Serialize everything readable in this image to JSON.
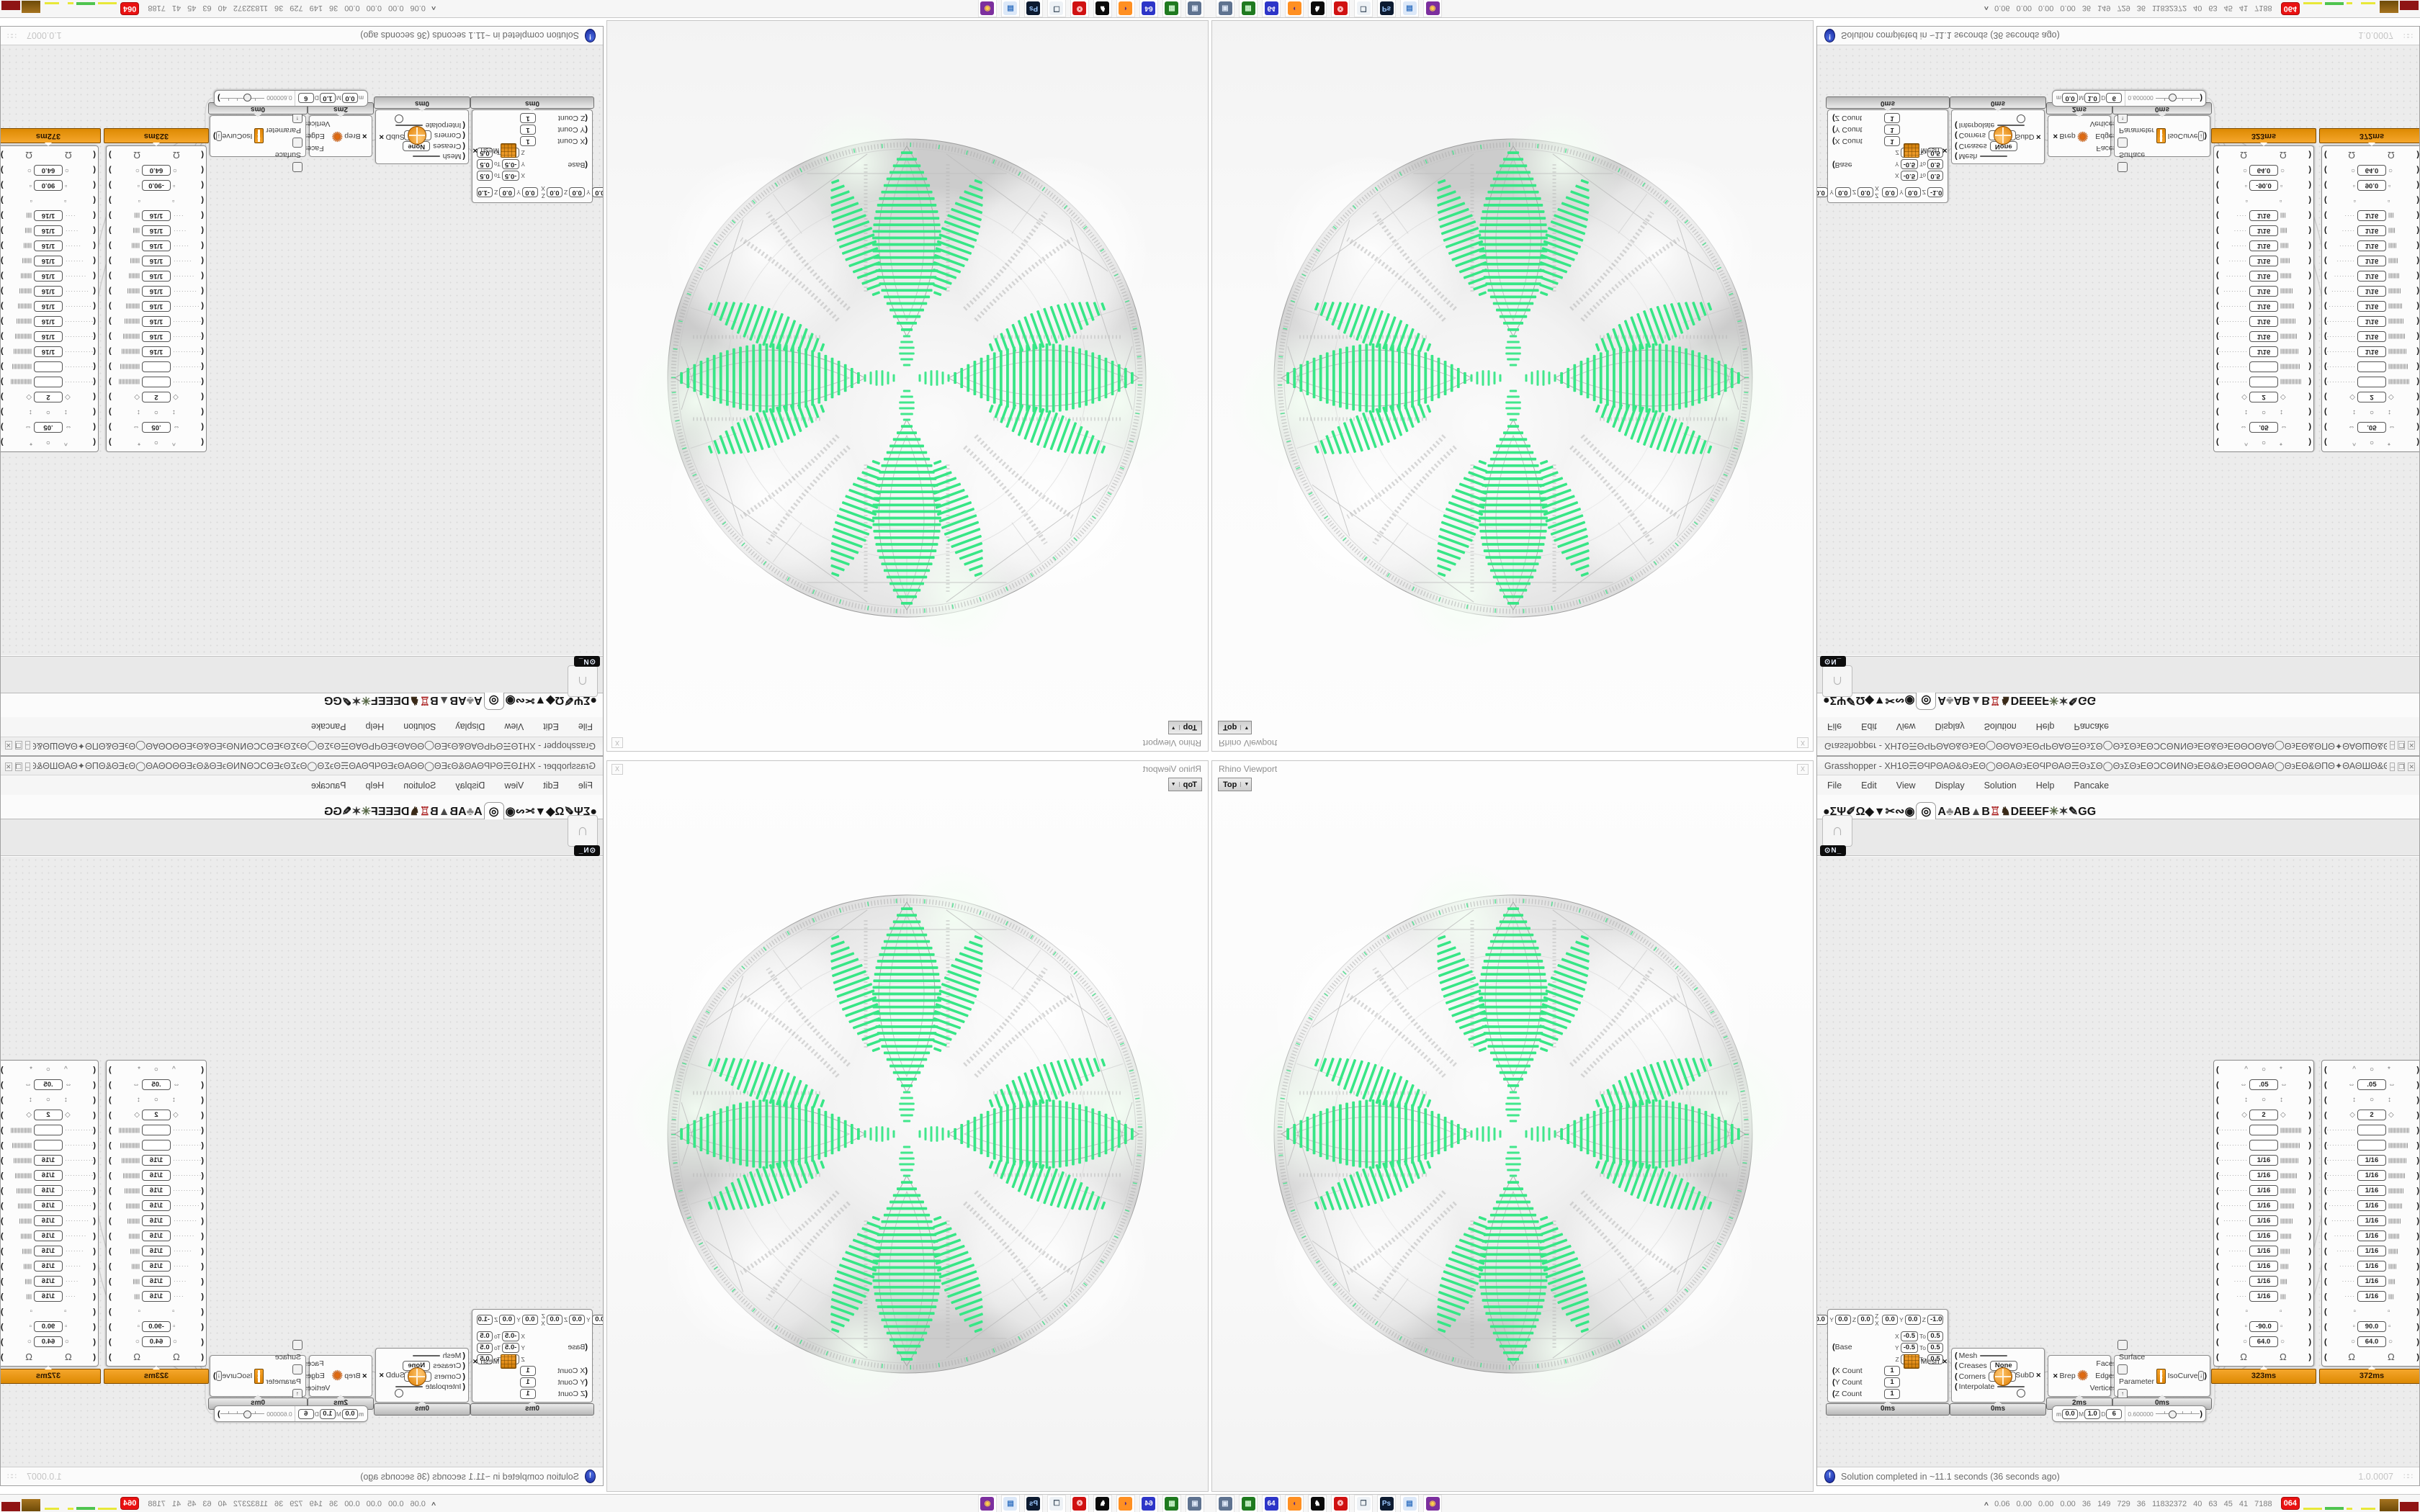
{
  "colors": {
    "pattern_green": "#37e686",
    "group_orange": "#e89410",
    "canvas_grey": "#ececec"
  },
  "viewport": {
    "title": "Rhino Viewport",
    "close_glyph": "X",
    "view_button": "Top",
    "caret": "▼"
  },
  "gh": {
    "title": "Grasshopper - XH1Θ☴ΘϤΡΘΑΘ&Θ϶ΕΘ◯ΘΘΑΘ϶ΕΘϤΡΘΑΘ☴Θ϶ΣΘ◯Θ϶ΣΘ϶ΕΘϽϹΘͶΝΘ϶ΕΘ&Θ϶ΕΘΘΟΘΑΘ◯Θ϶ΕΘ&ΘΠΘ✦ΘΑΘШΘ&ΘΠΘϽϹΘΟϽΘΟΘϽΘΟϽΘΟϽΘΟϽΘΟϽΘΟϽ_",
    "window_buttons": [
      {
        "g": "–"
      },
      {
        "g": "❐"
      },
      {
        "g": "✕"
      }
    ],
    "menus": [
      "File",
      "Edit",
      "View",
      "Display",
      "Solution",
      "Help",
      "Pancake"
    ],
    "tabs": [
      {
        "g": "●"
      },
      {
        "g": "Σ"
      },
      {
        "g": "Ψ"
      },
      {
        "g": "✐"
      },
      {
        "g": "Ω"
      },
      {
        "g": "◆"
      },
      {
        "g": "▼"
      },
      {
        "g": "✂"
      },
      {
        "g": "∾"
      },
      {
        "g": "◉"
      },
      {
        "g": "◎",
        "cls": "sel"
      },
      {
        "g": "A"
      },
      {
        "g": "♣",
        "sty": "color:#8a8a8a"
      },
      {
        "g": "A"
      },
      {
        "g": "B"
      },
      {
        "g": "▲",
        "sty": "color:#4a4a4a"
      },
      {
        "g": "B"
      },
      {
        "g": "♖",
        "sty": "color:#b03030"
      },
      {
        "g": "♞",
        "sty": "color:#3a2a18"
      },
      {
        "g": "D"
      },
      {
        "g": "E"
      },
      {
        "g": "E"
      },
      {
        "g": "E"
      },
      {
        "g": "F"
      },
      {
        "g": "✳",
        "sty": "color:#556644"
      },
      {
        "g": "✶",
        "sty": "color:#333"
      },
      {
        "g": "✎"
      },
      {
        "g": "G"
      },
      {
        "g": "G"
      }
    ],
    "palette": {
      "badge": "⊙N_",
      "tile_glyph": "∩"
    },
    "status": {
      "text": "Solution completed in ~11.1 seconds (36 seconds ago)",
      "icon": "!",
      "version": "1.0.0007",
      "grip": "∷∷"
    },
    "nodes": {
      "mesh_box": {
        "p_label": "P",
        "plane_rows": [
          {
            "k1": "O X",
            "v1": "0.0",
            "k2": "Y",
            "v2": "0.0",
            "k3": "Z",
            "v3": "0.0"
          },
          {
            "k1": "Z X",
            "v1": "0.0",
            "k2": "Y",
            "v2": "0.0",
            "k3": "Z",
            "v3": "-1.0"
          }
        ],
        "base_label": "Base",
        "domains": [
          {
            "k": "X",
            "a": "-0.5",
            "to": "To",
            "b": "0.5"
          },
          {
            "k": "Y",
            "a": "-0.5",
            "to": "To",
            "b": "0.5"
          },
          {
            "k": "Z",
            "a": "-0.5",
            "to": "To",
            "b": "0.5"
          }
        ],
        "output": "Mesh",
        "counts": [
          {
            "k": "X Count",
            "v": "1"
          },
          {
            "k": "Y Count",
            "v": "1"
          },
          {
            "k": "Z Count",
            "v": "1"
          }
        ],
        "time": "0ms"
      },
      "subd": {
        "rows": [
          {
            "k": "Mesh",
            "v": "",
            "cls": "noval"
          },
          {
            "k": "Creases",
            "v": "None"
          },
          {
            "k": "Corners",
            "v": "None"
          },
          {
            "k": "Interpolate",
            "v": "",
            "cls": "noval circ"
          }
        ],
        "output": "SubD",
        "time": "0ms"
      },
      "debrep": {
        "input": "Brep",
        "outputs": [
          "Faces",
          "Edges",
          "Vertices"
        ],
        "time": "2ms"
      },
      "isocurve": {
        "inputs": [
          {
            "k": "Surface"
          },
          {
            "k": "Parameter"
          },
          {
            "k": "Direction",
            "pre": "↑"
          }
        ],
        "icon_letter": "t",
        "output": "IsoCurve",
        "post": "↓",
        "time": "0ms"
      },
      "slider": {
        "min_label": "m",
        "min": "0.0",
        "max_label": "M",
        "max": "1.0",
        "digits_label": "D",
        "digits": "6",
        "value": "0.600000"
      },
      "panels": [
        {
          "time": "323ms",
          "rows": [
            {
              "l": "^",
              "v": "○",
              "t": "*",
              "cls": "sym nobox"
            },
            {
              "l": "⇔",
              "v": ".05",
              "t": "⇔",
              "cls": "sym"
            },
            {
              "l": "↕",
              "v": "○",
              "t": "↕",
              "cls": "sym nobox"
            },
            {
              "l": "◇",
              "v": "2",
              "t": "◇",
              "cls": "sym"
            },
            {
              "l": "···············",
              "v": "",
              "t": "|||||||||||||||"
            },
            {
              "l": "··············",
              "v": "",
              "t": "||||||||||||||"
            },
            {
              "l": "·············",
              "v": "1/16",
              "t": "|||||||||||||"
            },
            {
              "l": "············",
              "v": "1/16",
              "t": "||||||||||||"
            },
            {
              "l": "···········",
              "v": "1/16",
              "t": "|||||||||||"
            },
            {
              "l": "··········",
              "v": "1/16",
              "t": "||||||||||"
            },
            {
              "l": "·········",
              "v": "1/16",
              "t": "|||||||||"
            },
            {
              "l": "········",
              "v": "1/16",
              "t": "||||||||"
            },
            {
              "l": "·······",
              "v": "1/16",
              "t": "|||||||"
            },
            {
              "l": "······",
              "v": "1/16",
              "t": "||||||"
            },
            {
              "l": "·····",
              "v": "1/16",
              "t": "|||||"
            },
            {
              "l": "····",
              "v": "1/16",
              "t": "||||"
            },
            {
              "l": "▫",
              "v": "",
              "t": "▫",
              "cls": "sym nobox"
            },
            {
              "l": "▫",
              "v": "-90.0",
              "t": "▫",
              "cls": "sym"
            },
            {
              "l": "○",
              "v": "64.0",
              "t": "○",
              "cls": "sym"
            },
            {
              "l": "Ω",
              "v": "",
              "t": "Ω",
              "cls": "omega nobox"
            }
          ]
        },
        {
          "time": "372ms",
          "rows": [
            {
              "l": "^",
              "v": "○",
              "t": "*",
              "cls": "sym nobox"
            },
            {
              "l": "⇔",
              "v": ".05",
              "t": "⇔",
              "cls": "sym"
            },
            {
              "l": "↕",
              "v": "○",
              "t": "↕",
              "cls": "sym nobox"
            },
            {
              "l": "◇",
              "v": "2",
              "t": "◇",
              "cls": "sym"
            },
            {
              "l": "···············",
              "v": "",
              "t": "|||||||||||||||"
            },
            {
              "l": "··············",
              "v": "",
              "t": "||||||||||||||"
            },
            {
              "l": "·············",
              "v": "1/16",
              "t": "|||||||||||||"
            },
            {
              "l": "············",
              "v": "1/16",
              "t": "||||||||||||"
            },
            {
              "l": "···········",
              "v": "1/16",
              "t": "|||||||||||"
            },
            {
              "l": "··········",
              "v": "1/16",
              "t": "||||||||||"
            },
            {
              "l": "·········",
              "v": "1/16",
              "t": "|||||||||"
            },
            {
              "l": "········",
              "v": "1/16",
              "t": "||||||||"
            },
            {
              "l": "·······",
              "v": "1/16",
              "t": "|||||||"
            },
            {
              "l": "······",
              "v": "1/16",
              "t": "||||||"
            },
            {
              "l": "·····",
              "v": "1/16",
              "t": "|||||"
            },
            {
              "l": "····",
              "v": "1/16",
              "t": "||||"
            },
            {
              "l": "▫",
              "v": "",
              "t": "▫",
              "cls": "sym nobox"
            },
            {
              "l": "▫",
              "v": "90.0",
              "t": "▫",
              "cls": "sym"
            },
            {
              "l": "○",
              "v": "64.0",
              "t": "○",
              "cls": "sym"
            },
            {
              "l": "Ω",
              "v": "",
              "t": "Ω",
              "cls": "omega nobox"
            }
          ]
        }
      ]
    }
  },
  "taskbar": {
    "expand_arrow": "∧",
    "app_icons": [
      {
        "name": "monitor",
        "g": "▣",
        "bg": "#5f7390",
        "fg": "#dce6f5"
      },
      {
        "name": "green-box",
        "g": "▦",
        "bg": "#1f7a1f",
        "fg": "#c9f2c9"
      },
      {
        "name": "floppy-64",
        "g": "64",
        "bg": "#2d35c8",
        "fg": "#ffffff"
      },
      {
        "name": "firefox",
        "g": "◖",
        "bg": "#ff9022",
        "fg": "#5a2a82"
      },
      {
        "name": "wolf",
        "g": "♞",
        "bg": "#0a0a0a",
        "fg": "#ffffff"
      },
      {
        "name": "red-emblem",
        "g": "❂",
        "bg": "#d01111",
        "fg": "#ffd0d0"
      },
      {
        "name": "window",
        "g": "❒",
        "bg": "#eef2f6",
        "fg": "#4a5a6a"
      },
      {
        "name": "photoshop",
        "g": "Ps",
        "bg": "#0c1a30",
        "fg": "#9cc8ff"
      },
      {
        "name": "screen-share",
        "g": "▤",
        "bg": "#dce8f8",
        "fg": "#2e6fc0"
      },
      {
        "name": "purple-owl",
        "g": "◉",
        "bg": "#7c2f9e",
        "fg": "#ffcf4a"
      }
    ],
    "stats": [
      "0.06",
      "0.00",
      "0.00",
      "0.00",
      "36",
      "149",
      "729",
      "36",
      "11832372",
      "40",
      "63",
      "45",
      "41",
      "7188"
    ],
    "badge": "064",
    "spark": [
      {
        "sty": "width:26px;height:3px;background:#e8e838;align-self:flex-end;margin:0 2px 3px"
      },
      {
        "sty": "width:26px;height:4px;background:#4fc44f;align-self:flex-end;margin:0 2px 3px"
      },
      {
        "sty": "width:8px;height:3px;background:#e8e838;align-self:flex-end;margin:0 10px 3px 2px"
      },
      {
        "sty": "width:20px;height:3px;background:#e8e838;align-self:flex-end;margin:0 4px 3px 2px"
      },
      {
        "sty": "width:26px;height:17px;background:linear-gradient(#a5731f,#6d4a08);margin:0 2px 1px;align-self:flex-end"
      },
      {
        "sty": "width:26px;height:13px;background:#8f1414;margin:0 0 1px;align-self:flex-end"
      }
    ]
  }
}
